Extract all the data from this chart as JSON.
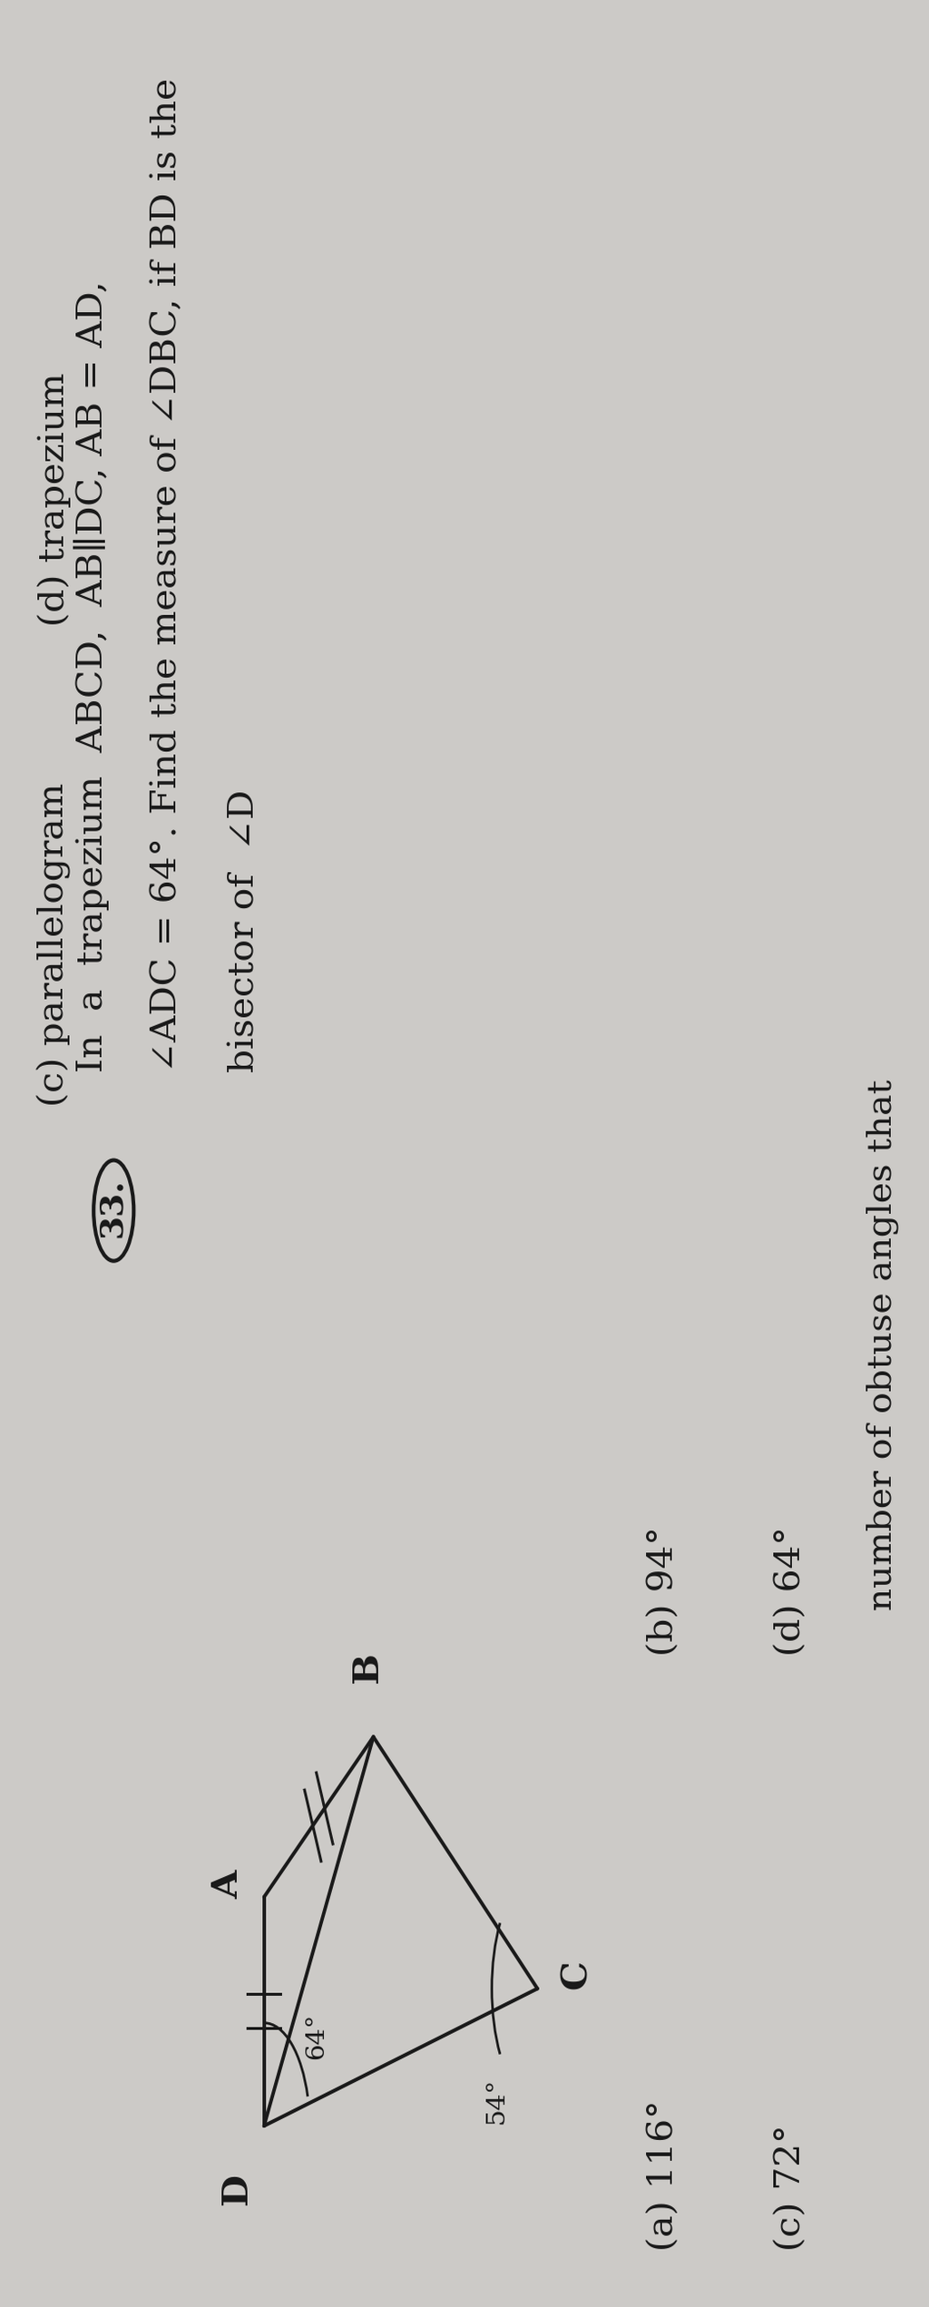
{
  "bg_color": "#cccac7",
  "fig_width": 10.24,
  "fig_height": 25.43,
  "prev_option_c": "(c) parallelogram",
  "prev_option_d": "(d) trapezium",
  "q_number": "33.",
  "question_line1": "In  a  trapezium  ABCD,  AB∥DC, AB = AD,",
  "question_line2": "∠ADC = 64°. Find the measure of ∠DBC, if BD is the",
  "question_line3": "bisector of  ∠D",
  "options_left": [
    "(a) 116°",
    "(c) 72°"
  ],
  "options_right": [
    "(b) 94°",
    "(d) 64°"
  ],
  "bottom_text": "number of obtuse angles that",
  "angle_D_label": "64°",
  "angle_C_label": "54°",
  "line_color": "#1a1a1a",
  "text_color": "#1a1a1a"
}
